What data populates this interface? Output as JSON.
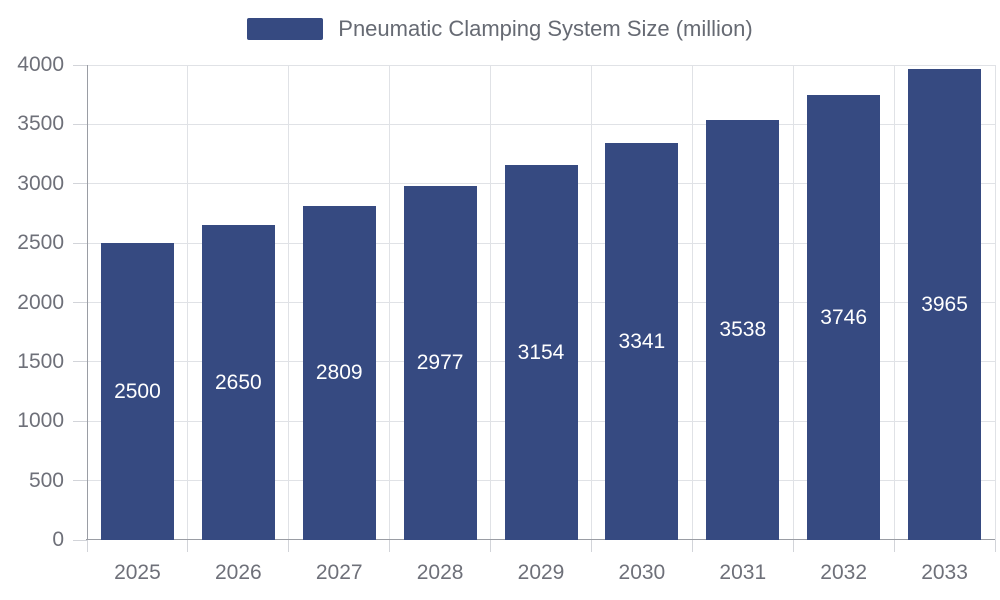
{
  "legend": {
    "label": "Pneumatic Clamping System Size (million)"
  },
  "chart_data": {
    "type": "bar",
    "title": "Pneumatic Clamping System Size (million)",
    "categories": [
      "2025",
      "2026",
      "2027",
      "2028",
      "2029",
      "2030",
      "2031",
      "2032",
      "2033"
    ],
    "series": [
      {
        "name": "Pneumatic Clamping System Size (million)",
        "values": [
          2500,
          2650,
          2809,
          2977,
          3154,
          3341,
          3538,
          3746,
          3965
        ]
      }
    ],
    "values": [
      2500,
      2650,
      2809,
      2977,
      3154,
      3341,
      3538,
      3746,
      3965
    ],
    "bar_value_labels": [
      "2500",
      "2650",
      "2809",
      "2977",
      "3154",
      "3341",
      "3538",
      "3746",
      "3965"
    ],
    "xlabel": "",
    "ylabel": "",
    "ylim": [
      0,
      4000
    ],
    "ytick_interval": 500,
    "yticks": [
      0,
      500,
      1000,
      1500,
      2000,
      2500,
      3000,
      3500,
      4000
    ],
    "grid": true,
    "legend_position": "top-center"
  },
  "colors": {
    "bar": "#364a81",
    "bar_label": "#ffffff",
    "axis_label": "#6e7079",
    "legend_text": "#666a73",
    "axis_line": "#9a9da4",
    "tick_line": "#d2d4d9",
    "grid_line": "#e0e2e6",
    "background": "#ffffff"
  }
}
